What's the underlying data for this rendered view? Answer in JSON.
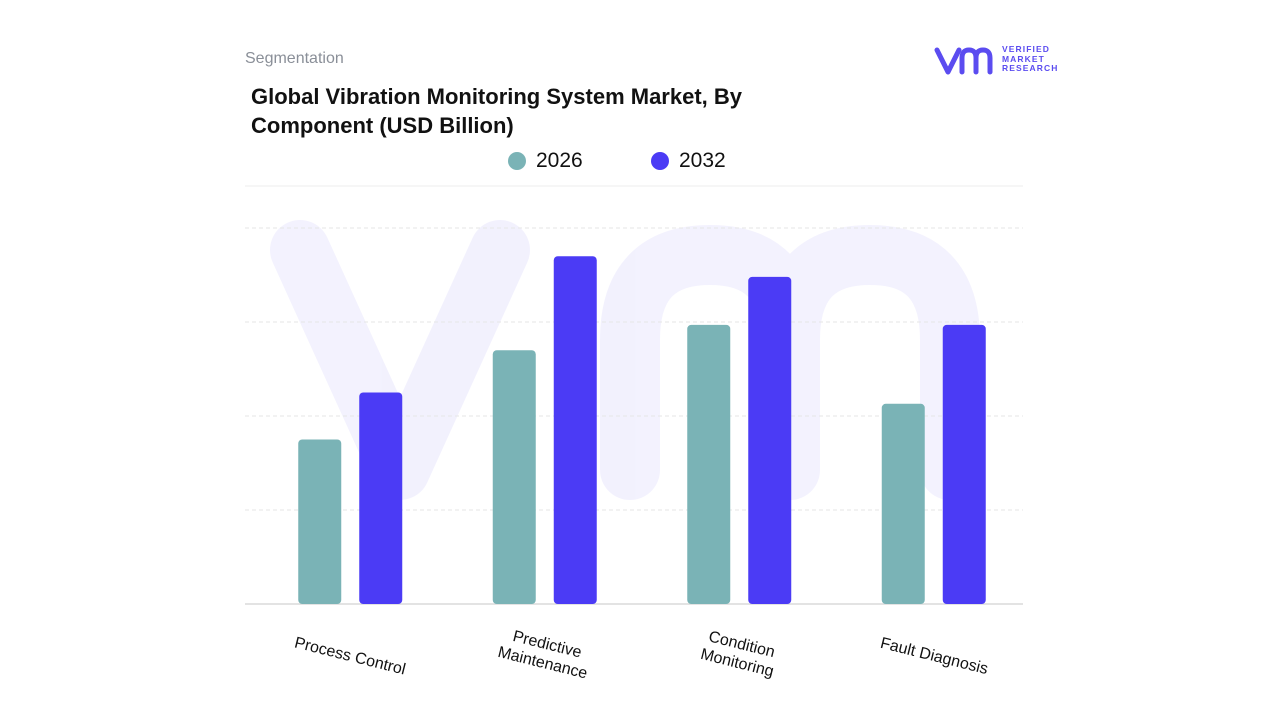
{
  "header": {
    "segment_label": "Segmentation",
    "title": "Global Vibration Monitoring System Market, By Component (USD Billion)"
  },
  "logo": {
    "mark": "vmr",
    "line1": "VERIFIED",
    "line2": "MARKET",
    "line3": "RESEARCH",
    "color": "#5b4cf0"
  },
  "chart_data": {
    "type": "bar",
    "title": "Global Vibration Monitoring System Market, By Component (USD Billion)",
    "categories": [
      "Process Control",
      "Predictive Maintenance",
      "Condition Monitoring",
      "Fault Diagnosis"
    ],
    "series": [
      {
        "name": "2026",
        "color": "#7ab3b6",
        "values": [
          1.75,
          2.7,
          2.97,
          2.13
        ]
      },
      {
        "name": "2032",
        "color": "#4b3bf5",
        "values": [
          2.25,
          3.7,
          3.48,
          2.97
        ]
      }
    ],
    "ylim": [
      0,
      4
    ],
    "xlabel": "",
    "ylabel": "",
    "grid": true,
    "legend_position": "top-center",
    "watermark": "vmr"
  }
}
